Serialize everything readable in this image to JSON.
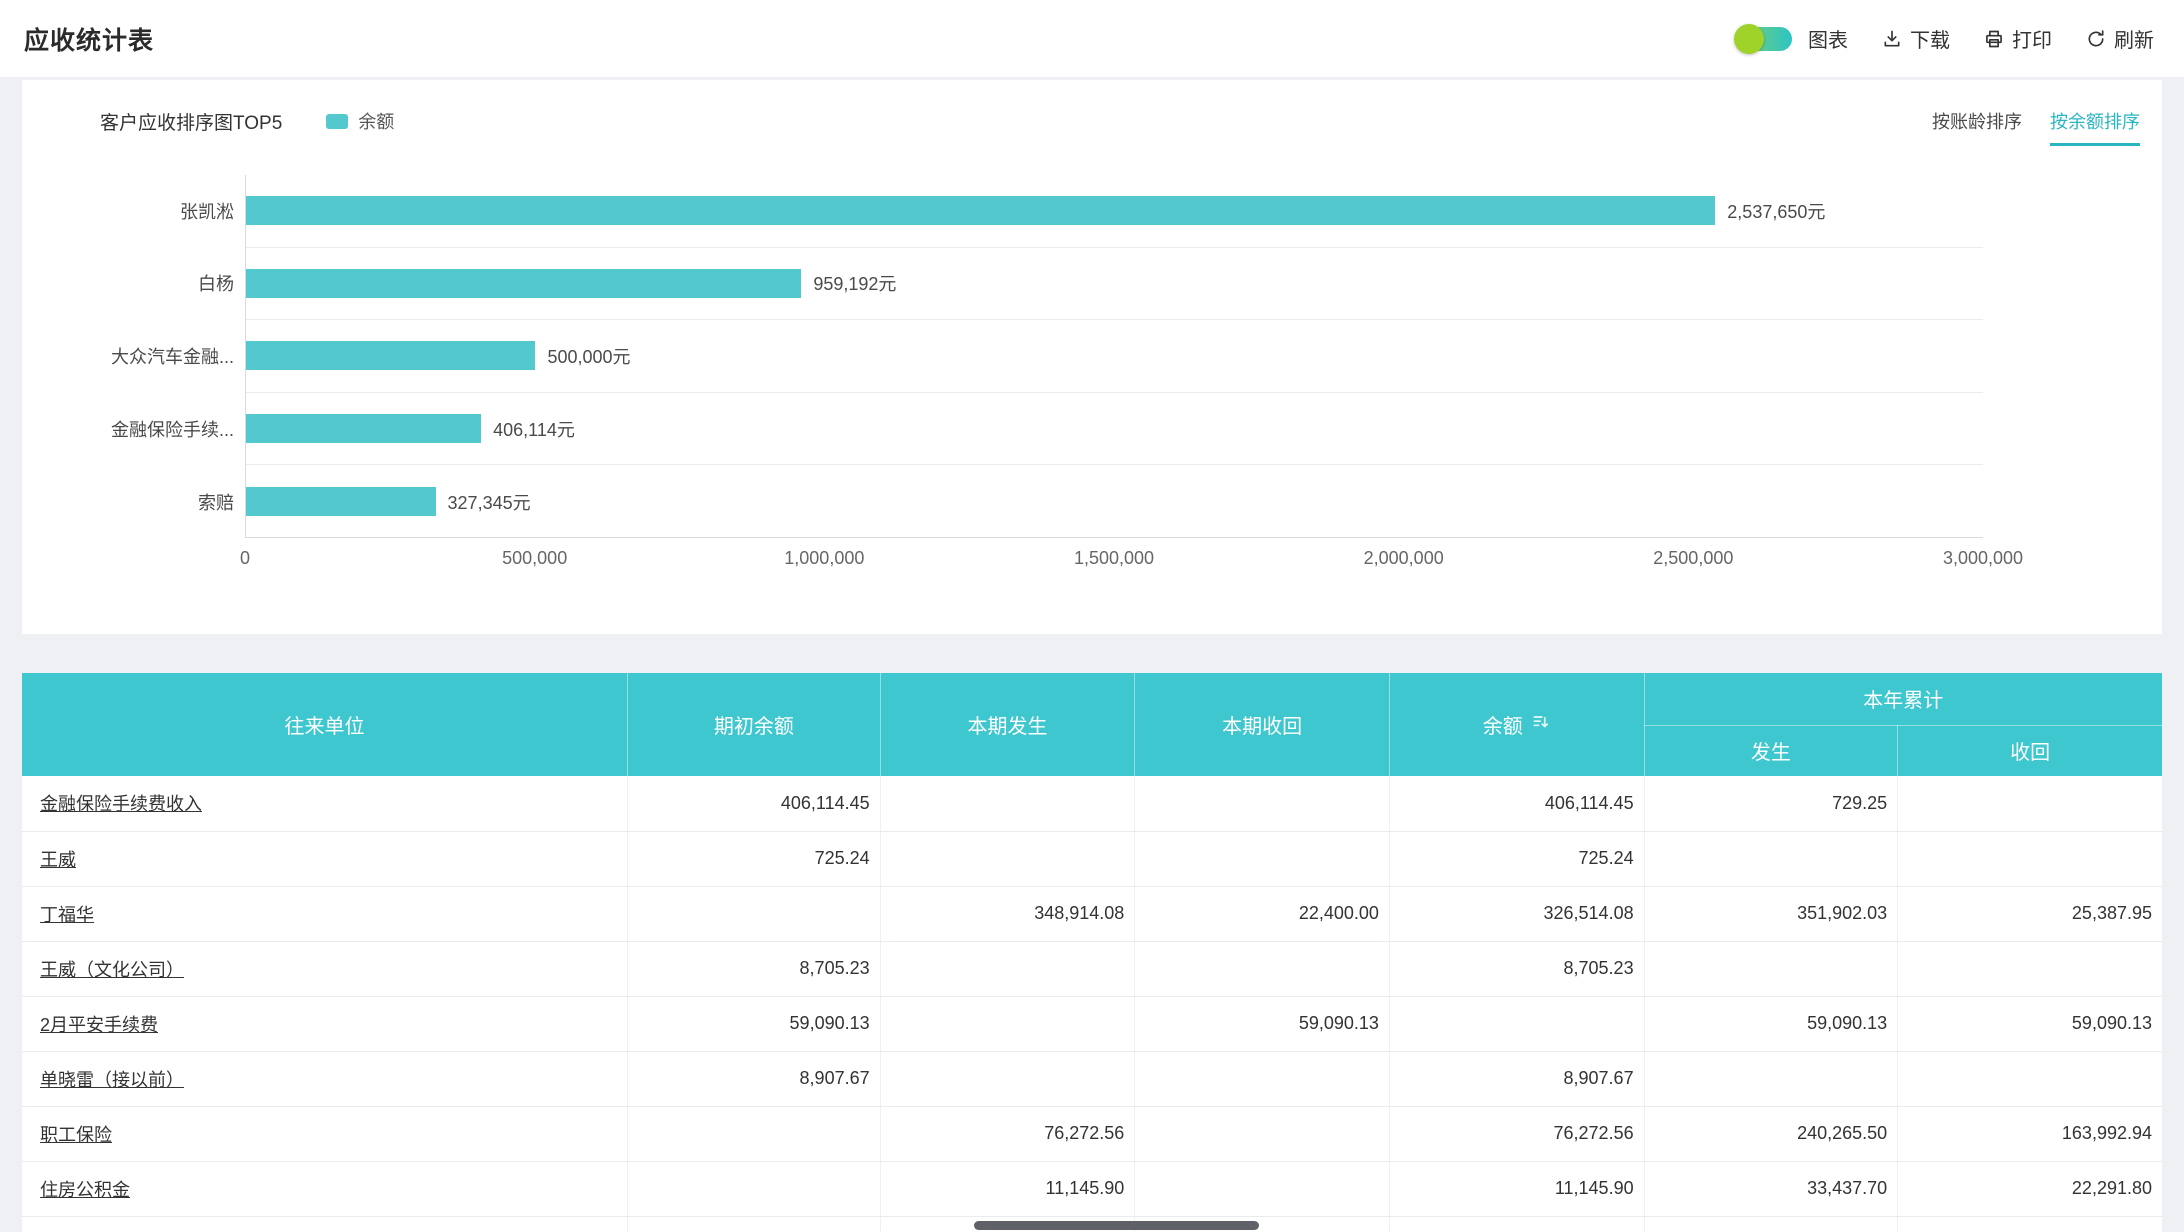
{
  "colors": {
    "accent_teal": "#3fc7cf",
    "bar_teal": "#53c9cd",
    "toggle_green": "#9fd32a",
    "sort_active": "#2ab5c3"
  },
  "header": {
    "title": "应收统计表",
    "toolbar": {
      "chart_toggle_label": "图表",
      "download_label": "下载",
      "print_label": "打印",
      "refresh_label": "刷新"
    }
  },
  "chart": {
    "title": "客户应收排序图TOP5",
    "legend_label": "余额",
    "sort_by_aging": "按账龄排序",
    "sort_by_balance": "按余额排序"
  },
  "chart_data": {
    "type": "bar",
    "orientation": "horizontal",
    "title": "客户应收排序图TOP5",
    "legend": [
      "余额"
    ],
    "categories": [
      "张凯淞",
      "白杨",
      "大众汽车金融...",
      "金融保险手续...",
      "索赔"
    ],
    "values": [
      2537650,
      959192,
      500000,
      406114,
      327345
    ],
    "value_labels": [
      "2,537,650元",
      "959,192元",
      "500,000元",
      "406,114元",
      "327,345元"
    ],
    "xlim": [
      0,
      3000000
    ],
    "x_ticks": [
      "0",
      "500,000",
      "1,000,000",
      "1,500,000",
      "2,000,000",
      "2,500,000",
      "3,000,000"
    ],
    "bar_color": "#53c9cd",
    "grid": true,
    "legend_position": "top-left"
  },
  "table": {
    "columns": {
      "unit": "往来单位",
      "opening_balance": "期初余额",
      "period_incurred": "本期发生",
      "period_recovered": "本期收回",
      "balance": "余额",
      "year_total": "本年累计",
      "year_incurred": "发生",
      "year_recovered": "收回"
    },
    "rows": [
      {
        "unit": "金融保险手续费收入",
        "opening": "406,114.45",
        "incurred": "",
        "recovered": "",
        "balance": "406,114.45",
        "year_incurred": "729.25",
        "year_recovered": ""
      },
      {
        "unit": "王威",
        "opening": "725.24",
        "incurred": "",
        "recovered": "",
        "balance": "725.24",
        "year_incurred": "",
        "year_recovered": ""
      },
      {
        "unit": "丁福华",
        "opening": "",
        "incurred": "348,914.08",
        "recovered": "22,400.00",
        "balance": "326,514.08",
        "year_incurred": "351,902.03",
        "year_recovered": "25,387.95"
      },
      {
        "unit": "王威（文化公司）",
        "opening": "8,705.23",
        "incurred": "",
        "recovered": "",
        "balance": "8,705.23",
        "year_incurred": "",
        "year_recovered": ""
      },
      {
        "unit": "2月平安手续费",
        "opening": "59,090.13",
        "incurred": "",
        "recovered": "59,090.13",
        "balance": "",
        "year_incurred": "59,090.13",
        "year_recovered": "59,090.13"
      },
      {
        "unit": "单晓雷（接以前）",
        "opening": "8,907.67",
        "incurred": "",
        "recovered": "",
        "balance": "8,907.67",
        "year_incurred": "",
        "year_recovered": ""
      },
      {
        "unit": "职工保险",
        "opening": "",
        "incurred": "76,272.56",
        "recovered": "",
        "balance": "76,272.56",
        "year_incurred": "240,265.50",
        "year_recovered": "163,992.94"
      },
      {
        "unit": "住房公积金",
        "opening": "",
        "incurred": "11,145.90",
        "recovered": "",
        "balance": "11,145.90",
        "year_incurred": "33,437.70",
        "year_recovered": "22,291.80"
      }
    ]
  }
}
